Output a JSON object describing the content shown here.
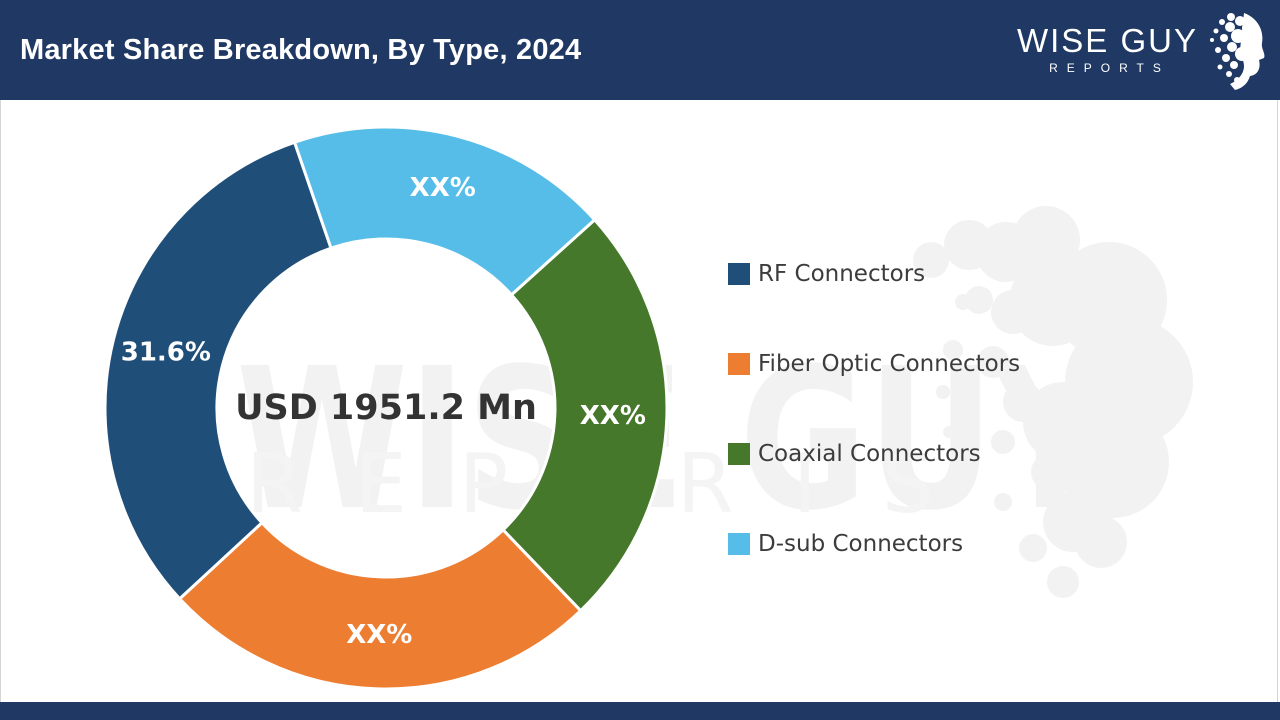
{
  "header": {
    "title": "Market Share Breakdown, By Type, 2024",
    "logo": {
      "line1": "WISE GUY",
      "line2": "REPORTS"
    }
  },
  "watermark": {
    "line1": "WISE GUY",
    "line2": "REPORTS"
  },
  "chart_data": {
    "type": "donut",
    "title": "Market Share Breakdown, By Type, 2024",
    "center_label": "USD 1951.2 Mn",
    "start_angle_deg": -19,
    "legend_position": "right",
    "segments": [
      {
        "label": "RF Connectors",
        "display_value": "31.6%",
        "pct": 31.6,
        "color": "#1F4E79"
      },
      {
        "label": "Fiber Optic Connectors",
        "display_value": "XX%",
        "pct": 25.3,
        "color": "#ED7D31"
      },
      {
        "label": "Coaxial Connectors",
        "display_value": "XX%",
        "pct": 24.5,
        "color": "#45782B"
      },
      {
        "label": "D-sub Connectors",
        "display_value": "XX%",
        "pct": 18.6,
        "color": "#56BDE8"
      }
    ]
  },
  "colors": {
    "header_bg": "#203864",
    "footer_bg": "#203864",
    "center_text": "#333333",
    "legend_text": "#3c3c3c",
    "watermark": "#f2f2f2"
  }
}
